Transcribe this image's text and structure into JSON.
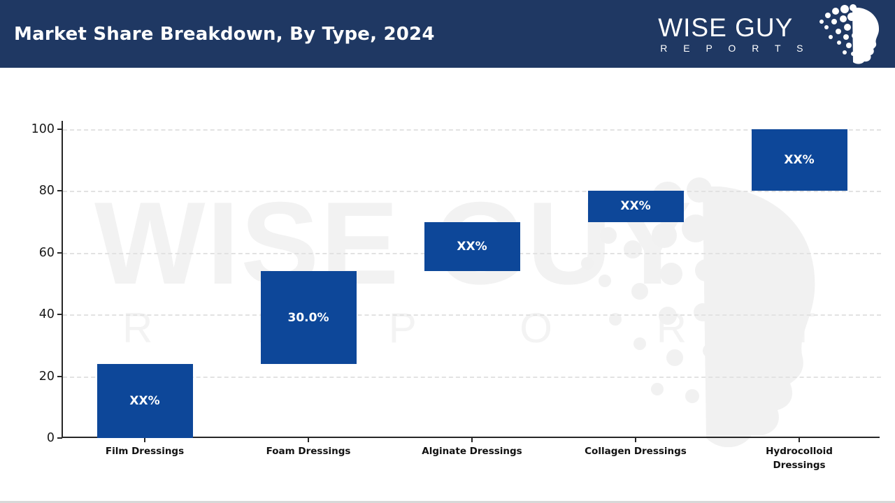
{
  "header": {
    "title": "Market Share Breakdown, By Type, 2024",
    "logo": {
      "line1": "WISE GUY",
      "line2": "R E P O R T S"
    }
  },
  "watermark": {
    "line1": "WISE GUY",
    "line2": "R E P O R T S"
  },
  "chart_data": {
    "type": "bar",
    "subtype": "waterfall",
    "title": "Market Share Breakdown, By Type, 2024",
    "categories": [
      "Film Dressings",
      "Foam Dressings",
      "Alginate Dressings",
      "Collagen Dressings",
      "Hydrocolloid Dressings"
    ],
    "values": [
      24,
      30,
      16,
      10,
      20
    ],
    "starts": [
      0,
      24,
      54,
      70,
      80
    ],
    "cumulative": [
      24,
      54,
      70,
      80,
      100
    ],
    "bar_labels": [
      "XX%",
      "30.0%",
      "XX%",
      "XX%",
      "XX%"
    ],
    "xlabel": "",
    "ylabel": "",
    "ylim": [
      0,
      100
    ],
    "yticks": [
      0,
      20,
      40,
      60,
      80,
      100
    ],
    "grid": "horizontal-dashed",
    "legend": "none",
    "bar_color": "#0d4799",
    "bar_label_color": "#ffffff",
    "axis_color": "#262626",
    "header_color": "#1f3863"
  }
}
